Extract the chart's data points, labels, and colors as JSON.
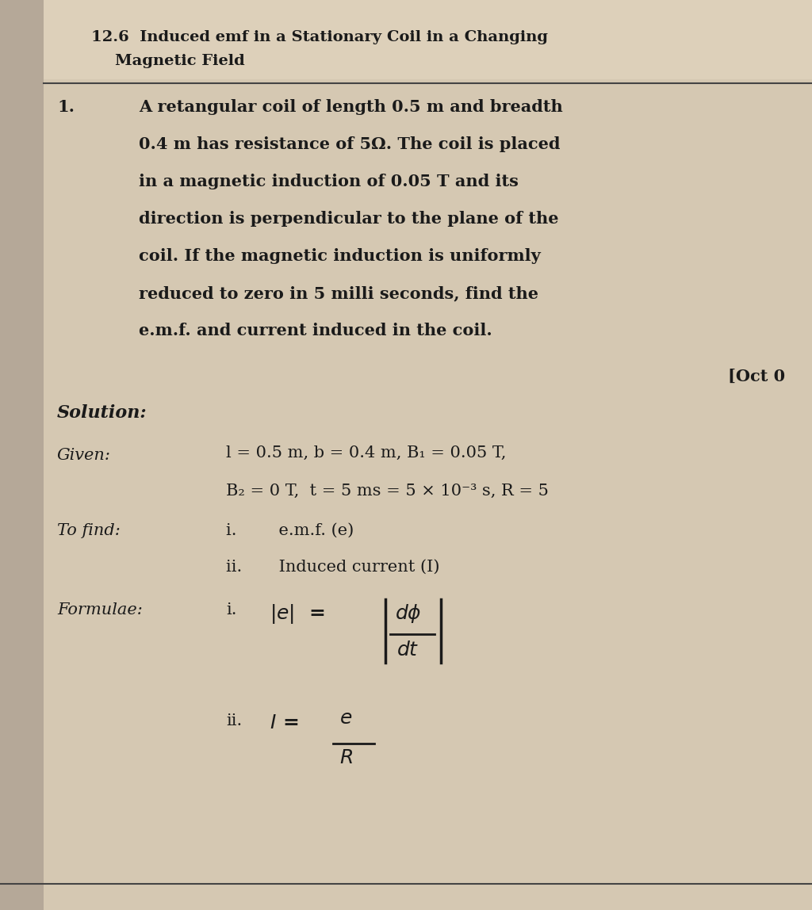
{
  "bg_color_main": "#d8cdb8",
  "bg_color_left": "#b8ae9e",
  "bg_color_top": "#d0c5b0",
  "text_color": "#1a1a1a",
  "line_color": "#555555",
  "title_num": "12.6",
  "title_text": "Induced emf in a Stationary Coil in a Changing",
  "title_text2": "Magnetic Field",
  "problem_number": "1.",
  "problem_lines": [
    "A retangular coil of length 0.5 m and breadth",
    "0.4 m has resistance of 5Ω. The coil is placed",
    "in a magnetic induction of 0.05 T and its",
    "direction is perpendicular to the plane of the",
    "coil. If the magnetic induction is uniformly",
    "reduced to zero in 5 milli seconds, find the",
    "e.m.f. and current induced in the coil."
  ],
  "oct_ref": "[Oct 0",
  "solution_label": "Solution:",
  "given_label": "Given:",
  "given_line1": "l = 0.5 m, b = 0.4 m, B₁ = 0.05 T,",
  "given_line2": "B₂ = 0 T,  t = 5 ms = 5 × 10⁻³ s, R = 5",
  "tofind_label": "To find:",
  "tofind_i": "i.        e.m.f. (e)",
  "tofind_ii": "ii.       Induced current (I)",
  "formulae_label": "Formulae:",
  "formulae_i_label": "i.",
  "formulae_ii_label": "ii."
}
